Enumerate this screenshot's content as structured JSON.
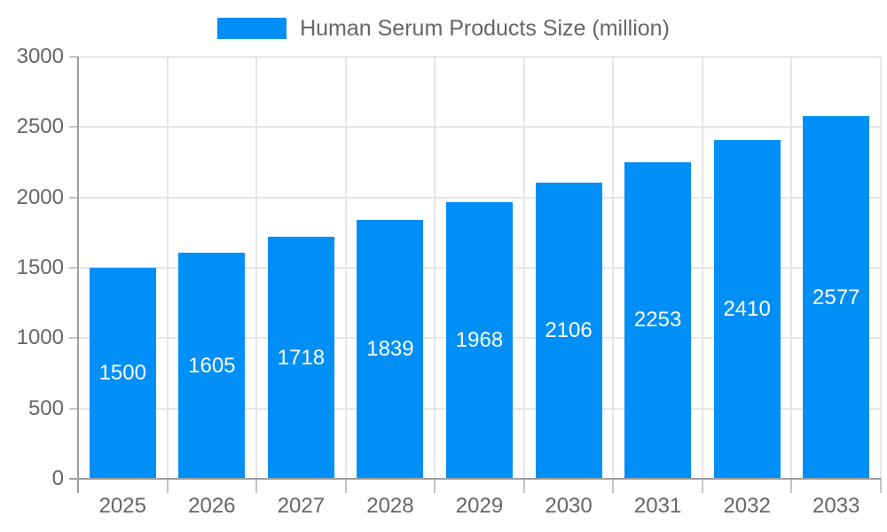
{
  "legend": {
    "label": "Human Serum Products Size (million)"
  },
  "chart_data": {
    "type": "bar",
    "title": "Human Serum Products Size (million)",
    "series_name": "Human Serum Products Size (million)",
    "categories": [
      "2025",
      "2026",
      "2027",
      "2028",
      "2029",
      "2030",
      "2031",
      "2032",
      "2033"
    ],
    "values": [
      1500,
      1605,
      1718,
      1839,
      1968,
      2106,
      2253,
      2410,
      2577
    ],
    "value_labels": [
      "1500",
      "1605",
      "1718",
      "1839",
      "1968",
      "2106",
      "2253",
      "2410",
      "2577"
    ],
    "yticks": [
      0,
      500,
      1000,
      1500,
      2000,
      2500,
      3000
    ],
    "ylim": [
      0,
      3000
    ],
    "xlabel": "",
    "ylabel": "",
    "grid": true,
    "legend_position": "top",
    "colors": {
      "bar": "#008FF7",
      "grid": "#E6E6E6",
      "axis": "#9E9E9E",
      "tick": "#C4C4C4",
      "axis_text": "#666666",
      "value_text": "#FFFFFF"
    }
  }
}
